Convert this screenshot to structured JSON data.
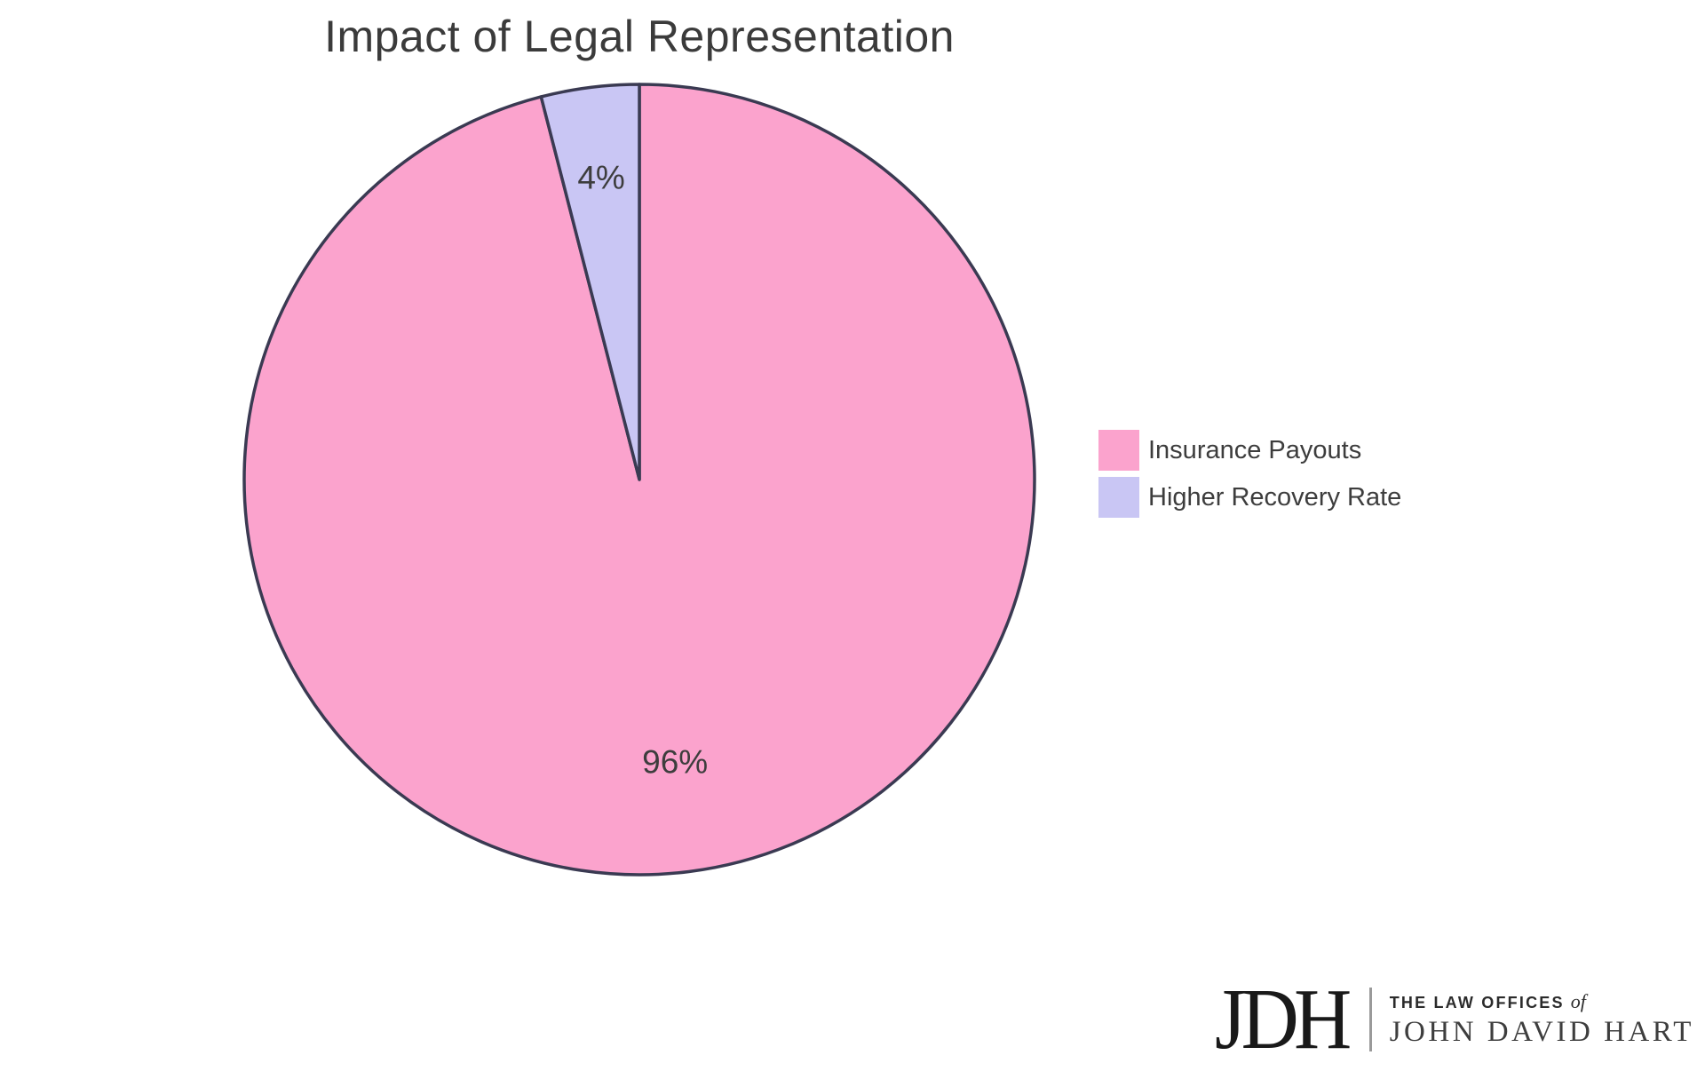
{
  "page": {
    "background": "#ffffff"
  },
  "chart_data": {
    "type": "pie",
    "title": "Impact of Legal Representation",
    "labels": [
      "Insurance Payouts",
      "Higher Recovery Rate"
    ],
    "values": [
      96,
      4
    ],
    "value_labels": [
      "96%",
      "4%"
    ],
    "colors": [
      "#FBA3CD",
      "#C9C6F4"
    ],
    "stroke_color": "#3A3A52",
    "stroke_width": 3.5,
    "start_angle_deg": 0,
    "direction": "clockwise",
    "label_position": "inside",
    "label_radius_fraction": [
      0.72,
      0.77
    ],
    "legend_position": "right",
    "title_color": "#3B3B3B",
    "label_color": "#3D3D3D"
  },
  "legend": {
    "items": [
      {
        "label": "Insurance Payouts",
        "color": "#FBA3CD"
      },
      {
        "label": "Higher Recovery Rate",
        "color": "#C9C6F4"
      }
    ]
  },
  "branding": {
    "monogram": "JDH",
    "tagline_caps": "THE LAW OFFICES",
    "tagline_of": "of",
    "firm_name": "JOHN DAVID HART"
  }
}
